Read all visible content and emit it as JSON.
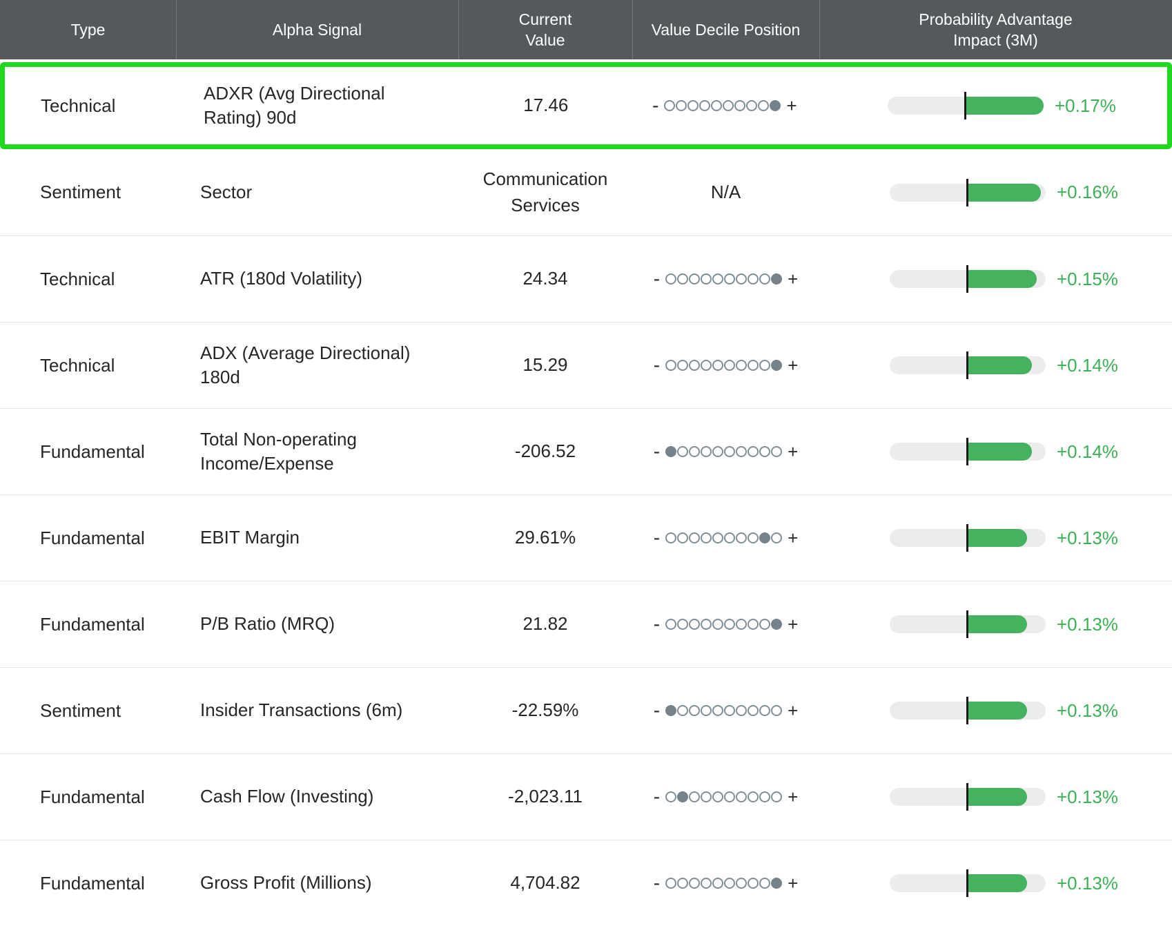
{
  "header": {
    "columns": [
      {
        "label": "Type"
      },
      {
        "label": "Alpha Signal"
      },
      {
        "label": "Current\nValue"
      },
      {
        "label": "Value Decile Position"
      },
      {
        "label": "Probability Advantage\nImpact (3M)"
      }
    ]
  },
  "decile_widget": {
    "minus_label": "-",
    "plus_label": "+",
    "dot_count": 10,
    "na_label": "N/A"
  },
  "impact_bar": {
    "max_impact": 0.17,
    "fill_color": "#44b25e",
    "track_color": "#ececec"
  },
  "colors": {
    "header_bg": "#54595c",
    "header_text": "#ffffff",
    "highlight_border": "#20d820",
    "impact_text": "#3cb054",
    "dot_outline": "#7f8d96",
    "dot_filled": "#74828b",
    "row_divider": "#e4e4e4"
  },
  "rows": [
    {
      "type": "Technical",
      "signal": "ADXR (Avg Directional Rating) 90d",
      "value": "17.46",
      "decile": 10,
      "impact": "+0.17%",
      "impact_value": 0.17,
      "highlighted": true
    },
    {
      "type": "Sentiment",
      "signal": "Sector",
      "value": "Communication Services",
      "decile": null,
      "impact": "+0.16%",
      "impact_value": 0.16,
      "highlighted": false
    },
    {
      "type": "Technical",
      "signal": "ATR (180d Volatility)",
      "value": "24.34",
      "decile": 10,
      "impact": "+0.15%",
      "impact_value": 0.15,
      "highlighted": false
    },
    {
      "type": "Technical",
      "signal": "ADX (Average Directional) 180d",
      "value": "15.29",
      "decile": 10,
      "impact": "+0.14%",
      "impact_value": 0.14,
      "highlighted": false
    },
    {
      "type": "Fundamental",
      "signal": "Total Non-operating Income/Expense",
      "value": "-206.52",
      "decile": 1,
      "impact": "+0.14%",
      "impact_value": 0.14,
      "highlighted": false
    },
    {
      "type": "Fundamental",
      "signal": "EBIT Margin",
      "value": "29.61%",
      "decile": 9,
      "impact": "+0.13%",
      "impact_value": 0.13,
      "highlighted": false
    },
    {
      "type": "Fundamental",
      "signal": "P/B Ratio (MRQ)",
      "value": "21.82",
      "decile": 10,
      "impact": "+0.13%",
      "impact_value": 0.13,
      "highlighted": false
    },
    {
      "type": "Sentiment",
      "signal": "Insider Transactions (6m)",
      "value": "-22.59%",
      "decile": 1,
      "impact": "+0.13%",
      "impact_value": 0.13,
      "highlighted": false
    },
    {
      "type": "Fundamental",
      "signal": "Cash Flow (Investing)",
      "value": "-2,023.11",
      "decile": 2,
      "impact": "+0.13%",
      "impact_value": 0.13,
      "highlighted": false
    },
    {
      "type": "Fundamental",
      "signal": "Gross Profit (Millions)",
      "value": "4,704.82",
      "decile": 10,
      "impact": "+0.13%",
      "impact_value": 0.13,
      "highlighted": false
    }
  ]
}
